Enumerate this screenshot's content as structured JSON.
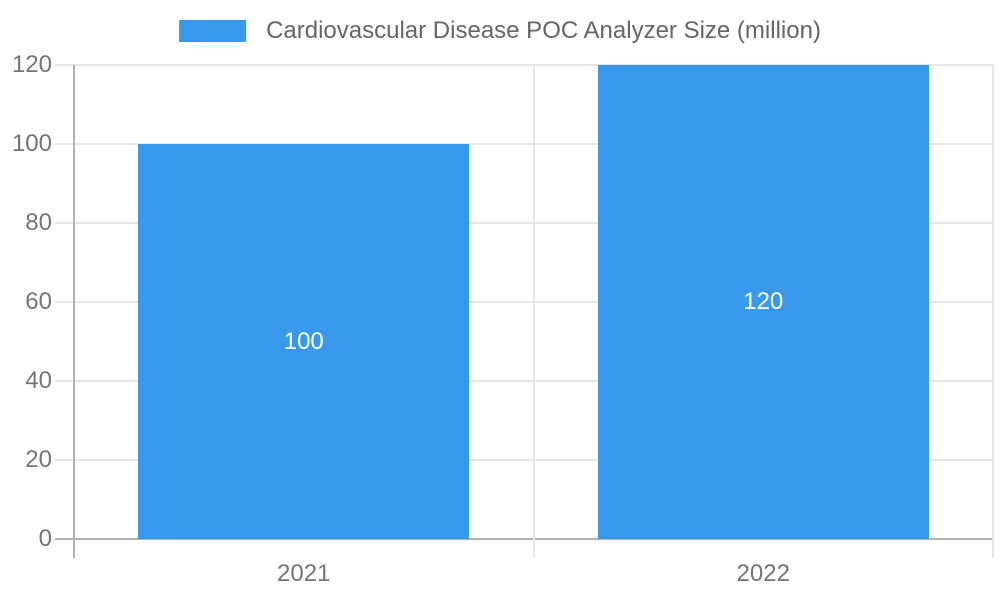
{
  "chart_data": {
    "type": "bar",
    "title": "",
    "categories": [
      "2021",
      "2022"
    ],
    "series": [
      {
        "name": "Cardiovascular Disease POC Analyzer Size (million)",
        "values": [
          100,
          120
        ]
      }
    ],
    "bar_value_labels": [
      "100",
      "120"
    ],
    "y_ticks": [
      0,
      20,
      40,
      60,
      80,
      100,
      120
    ],
    "ylim": [
      0,
      120
    ],
    "xlabel": "",
    "ylabel": "",
    "grid": true,
    "legend_position": "top",
    "colors": {
      "bar": "#3899EC",
      "gridline": "#E6E6E6",
      "axis_line": "#B3B3B3",
      "tick_label": "#757575",
      "legend_label": "#666666",
      "bar_value_label": "#FFFFFF",
      "background": "#FFFFFF"
    }
  }
}
